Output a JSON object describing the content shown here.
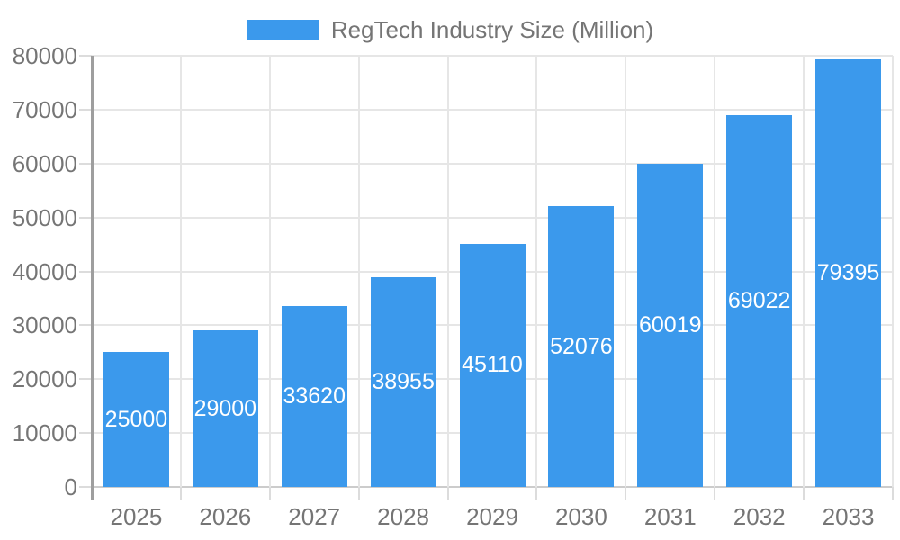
{
  "legend": {
    "label": "RegTech Industry Size (Million)"
  },
  "chart_data": {
    "type": "bar",
    "title": "RegTech Industry Size (Million)",
    "categories": [
      "2025",
      "2026",
      "2027",
      "2028",
      "2029",
      "2030",
      "2031",
      "2032",
      "2033"
    ],
    "values": [
      25000,
      29000,
      33620,
      38955,
      45110,
      52076,
      60019,
      69022,
      79395
    ],
    "value_labels": [
      "25000",
      "29000",
      "33620",
      "38955",
      "45110",
      "52076",
      "60019",
      "69022",
      "79395"
    ],
    "xlabel": "",
    "ylabel": "",
    "ylim": [
      0,
      80000
    ],
    "y_ticks": [
      0,
      10000,
      20000,
      30000,
      40000,
      50000,
      60000,
      70000,
      80000
    ],
    "y_tick_labels": [
      "0",
      "10000",
      "20000",
      "30000",
      "40000",
      "50000",
      "60000",
      "70000",
      "80000"
    ],
    "grid": "both",
    "legend_position": "top-center",
    "colors": {
      "bar": "#3B99EC",
      "value_label": "#FFFFFF",
      "axis_text": "#757575",
      "gridline": "#E6E6E6",
      "baseline": "#CCCCCC",
      "axis_line": "#9E9E9E",
      "tick": "#DCDCDC"
    }
  }
}
